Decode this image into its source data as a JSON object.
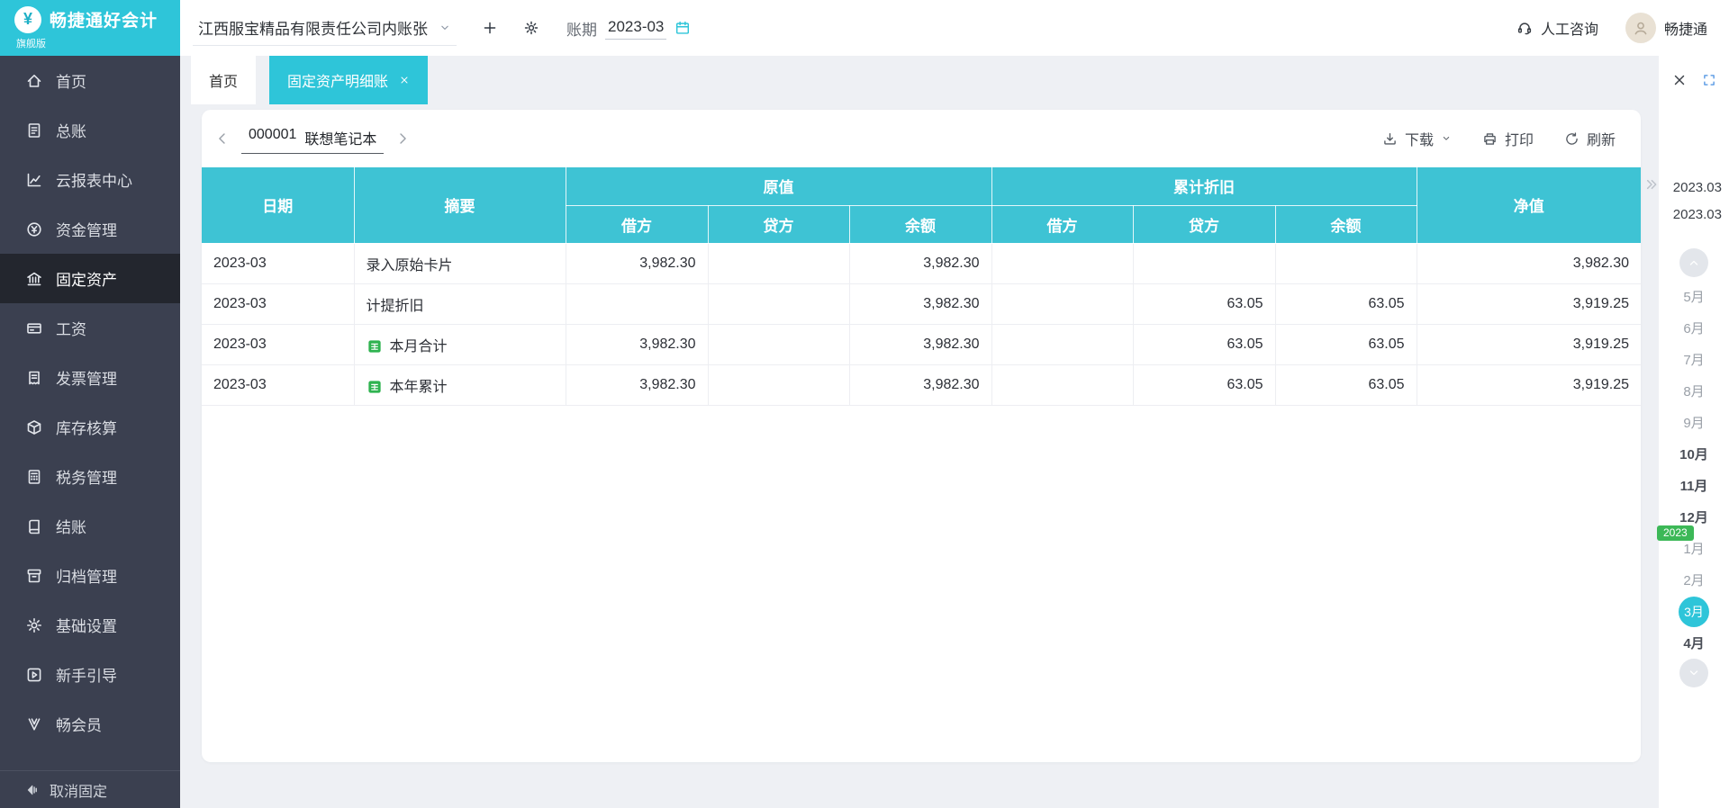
{
  "colors": {
    "primary_teal": "#2ec5d9",
    "table_header_teal": "#3ec3d4",
    "sidebar_bg": "#3b4050",
    "sidebar_active_bg": "#23262e",
    "page_bg": "#eef0f4",
    "badge_green": "#3cb857",
    "summary_green": "#2fb350",
    "link_blue": "#4a90e2"
  },
  "topbar": {
    "logo_title": "畅捷通好会计",
    "logo_badge": "旗舰版",
    "company": "江西服宝精品有限责任公司内账张",
    "period_label": "账期",
    "period_value": "2023-03",
    "support": "人工咨询",
    "username": "畅捷通"
  },
  "sidebar": {
    "items": [
      {
        "key": "home",
        "icon": "home-icon",
        "label": "首页",
        "active": false
      },
      {
        "key": "general-ledger",
        "icon": "ledger-icon",
        "label": "总账",
        "active": false
      },
      {
        "key": "cloud-reports",
        "icon": "report-icon",
        "label": "云报表中心",
        "active": false
      },
      {
        "key": "funds",
        "icon": "fund-icon",
        "label": "资金管理",
        "active": false
      },
      {
        "key": "fixed-assets",
        "icon": "building-icon",
        "label": "固定资产",
        "active": true
      },
      {
        "key": "payroll",
        "icon": "payroll-icon",
        "label": "工资",
        "active": false
      },
      {
        "key": "invoices",
        "icon": "invoice-icon",
        "label": "发票管理",
        "active": false
      },
      {
        "key": "inventory",
        "icon": "inventory-icon",
        "label": "库存核算",
        "active": false
      },
      {
        "key": "tax",
        "icon": "tax-icon",
        "label": "税务管理",
        "active": false
      },
      {
        "key": "closing",
        "icon": "closing-icon",
        "label": "结账",
        "active": false
      },
      {
        "key": "archive",
        "icon": "archive-icon",
        "label": "归档管理",
        "active": false
      },
      {
        "key": "settings",
        "icon": "gear-icon",
        "label": "基础设置",
        "active": false
      },
      {
        "key": "guide",
        "icon": "guide-icon",
        "label": "新手引导",
        "active": false
      },
      {
        "key": "member",
        "icon": "member-icon",
        "label": "畅会员",
        "active": false
      }
    ],
    "footer_label": "取消固定"
  },
  "tabs": [
    {
      "key": "home",
      "label": "首页",
      "active": false,
      "closable": false
    },
    {
      "key": "fixed-asset-ledger",
      "label": "固定资产明细账",
      "active": true,
      "closable": true
    }
  ],
  "toolbar": {
    "asset_code": "000001",
    "asset_name": "联想笔记本",
    "download": "下载",
    "print": "打印",
    "refresh": "刷新"
  },
  "ledger_table": {
    "headers": {
      "date": "日期",
      "summary": "摘要",
      "original_value": "原值",
      "accumulated_depreciation": "累计折旧",
      "net_value": "净值",
      "debit": "借方",
      "credit": "贷方",
      "balance": "余额"
    },
    "rows": [
      {
        "date": "2023-03",
        "summary": "录入原始卡片",
        "has_icon": false,
        "ov_debit": "3,982.30",
        "ov_credit": "",
        "ov_balance": "3,982.30",
        "ad_debit": "",
        "ad_credit": "",
        "ad_balance": "",
        "net": "3,982.30"
      },
      {
        "date": "2023-03",
        "summary": "计提折旧",
        "has_icon": false,
        "ov_debit": "",
        "ov_credit": "",
        "ov_balance": "3,982.30",
        "ad_debit": "",
        "ad_credit": "63.05",
        "ad_balance": "63.05",
        "net": "3,919.25"
      },
      {
        "date": "2023-03",
        "summary": "本月合计",
        "has_icon": true,
        "ov_debit": "3,982.30",
        "ov_credit": "",
        "ov_balance": "3,982.30",
        "ad_debit": "",
        "ad_credit": "63.05",
        "ad_balance": "63.05",
        "net": "3,919.25"
      },
      {
        "date": "2023-03",
        "summary": "本年累计",
        "has_icon": true,
        "ov_debit": "3,982.30",
        "ov_credit": "",
        "ov_balance": "3,982.30",
        "ad_debit": "",
        "ad_credit": "63.05",
        "ad_balance": "63.05",
        "net": "3,919.25"
      }
    ]
  },
  "period_panel": {
    "range": [
      "2023.03",
      "2023.03"
    ],
    "items": [
      {
        "type": "month",
        "label": "5月",
        "state": "normal"
      },
      {
        "type": "month",
        "label": "6月",
        "state": "normal"
      },
      {
        "type": "month",
        "label": "7月",
        "state": "normal"
      },
      {
        "type": "month",
        "label": "8月",
        "state": "normal"
      },
      {
        "type": "month",
        "label": "9月",
        "state": "normal"
      },
      {
        "type": "month",
        "label": "10月",
        "state": "strong"
      },
      {
        "type": "month",
        "label": "11月",
        "state": "strong"
      },
      {
        "type": "month",
        "label": "12月",
        "state": "strong"
      },
      {
        "type": "badge",
        "label": "2023"
      },
      {
        "type": "month",
        "label": "1月",
        "state": "normal"
      },
      {
        "type": "month",
        "label": "2月",
        "state": "normal"
      },
      {
        "type": "month",
        "label": "3月",
        "state": "active"
      },
      {
        "type": "month",
        "label": "4月",
        "state": "strong"
      }
    ]
  }
}
